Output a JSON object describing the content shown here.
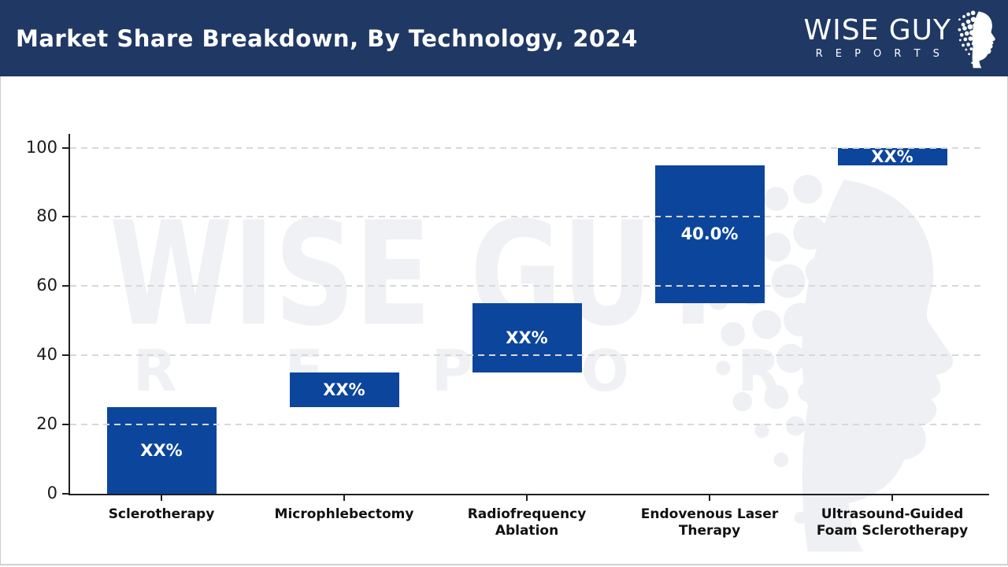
{
  "header": {
    "title": "Market Share Breakdown, By Technology, 2024"
  },
  "logo": {
    "line1": "WISE GUY",
    "line2": "R E P O R T S"
  },
  "watermark": {
    "line1": "WISE GUY",
    "line2": "R E P O R T S"
  },
  "chart_data": {
    "type": "bar",
    "subtype": "waterfall",
    "title": "Market Share Breakdown, By Technology, 2024",
    "categories": [
      "Sclerotherapy",
      "Microphlebectomy",
      "Radiofrequency\nAblation",
      "Endovenous Laser\nTherapy",
      "Ultrasound-Guided\nFoam Sclerotherapy"
    ],
    "bars": [
      {
        "category": "Sclerotherapy",
        "label": "XX%",
        "start": 0,
        "end": 25
      },
      {
        "category": "Microphlebectomy",
        "label": "XX%",
        "start": 25,
        "end": 35
      },
      {
        "category": "Radiofrequency Ablation",
        "label": "XX%",
        "start": 35,
        "end": 55
      },
      {
        "category": "Endovenous Laser Therapy",
        "label": "40.0%",
        "start": 55,
        "end": 95
      },
      {
        "category": "Ultrasound-Guided Foam Sclerotherapy",
        "label": "XX%",
        "start": 95,
        "end": 100
      }
    ],
    "yticks": [
      0,
      20,
      40,
      60,
      80,
      100
    ],
    "ylim": [
      0,
      104
    ],
    "xlabel": "",
    "ylabel": "",
    "legend": false,
    "grid": "horizontal-dashed",
    "colors": {
      "bar": "#0c459c",
      "grid": "#d8d8d8",
      "axis": "#1f1f1f",
      "bar_label": "#ffffff",
      "header_bg": "#203864",
      "watermark": "#f0f1f4"
    }
  }
}
